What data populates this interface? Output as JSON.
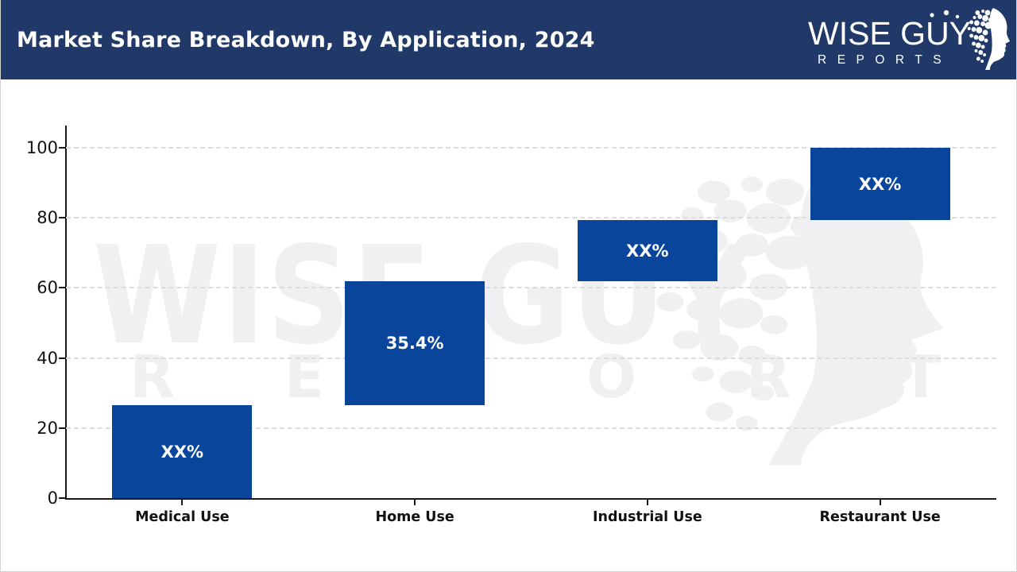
{
  "header": {
    "title": "Market Share Breakdown, By Application, 2024"
  },
  "logo": {
    "line1": "WISE GUY",
    "line2": "REPORTS"
  },
  "watermark": {
    "line1": "WISE GUY",
    "line2": "R E P O R T S"
  },
  "colors": {
    "header_bg": "#213968",
    "bar": "#0A459C",
    "bar_label": "#FFFFFF",
    "grid": "#DCDCDC",
    "axis": "#1A1A1A",
    "watermark": "#F0F0F2"
  },
  "chart_data": {
    "type": "bar",
    "subtype": "waterfall",
    "title": "Market Share Breakdown, By Application, 2024",
    "xlabel": "",
    "ylabel": "",
    "categories": [
      "Medical Use",
      "Home Use",
      "Industrial Use",
      "Restaurant Use"
    ],
    "segments": [
      {
        "category": "Medical Use",
        "start": 0,
        "end": 26.5,
        "label": "XX%"
      },
      {
        "category": "Home Use",
        "start": 26.5,
        "end": 61.9,
        "label": "35.4%",
        "value": 35.4
      },
      {
        "category": "Industrial Use",
        "start": 61.9,
        "end": 79.3,
        "label": "XX%"
      },
      {
        "category": "Restaurant Use",
        "start": 79.3,
        "end": 100,
        "label": "XX%"
      }
    ],
    "yticks": [
      0,
      20,
      40,
      60,
      80,
      100
    ],
    "ylim": [
      0,
      100
    ],
    "grid": "horizontal-dashed",
    "legend": "none"
  }
}
